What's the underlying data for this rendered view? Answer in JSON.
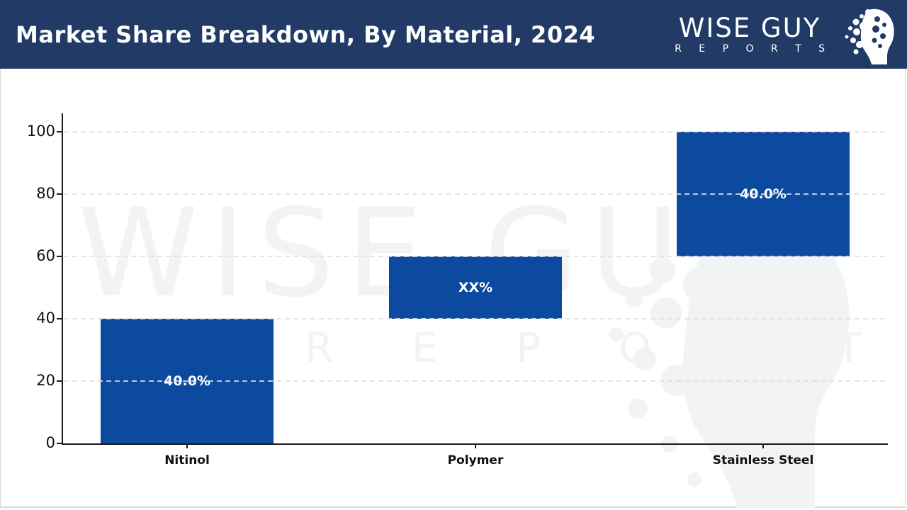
{
  "header": {
    "title": "Market Share Breakdown, By Material, 2024",
    "bg_color": "#213A66",
    "logo": {
      "line1": "WISE GUY",
      "line2": "REPORTS"
    }
  },
  "watermark": {
    "line1": "WISE GUY",
    "line2": "REPORTS"
  },
  "chart_data": {
    "type": "bar",
    "subtype": "waterfall",
    "title": "Market Share Breakdown, By Material, 2024",
    "categories": [
      "Nitinol",
      "Polymer",
      "Stainless Steel"
    ],
    "series": [
      {
        "name": "Market Share",
        "segments": [
          {
            "category": "Nitinol",
            "start": 0,
            "end": 40,
            "label": "40.0%"
          },
          {
            "category": "Polymer",
            "start": 40,
            "end": 60,
            "label": "XX%"
          },
          {
            "category": "Stainless Steel",
            "start": 60,
            "end": 100,
            "label": "40.0%"
          }
        ]
      }
    ],
    "xlabel": "",
    "ylabel": "",
    "ylim": [
      0,
      100
    ],
    "yticks": [
      0,
      20,
      40,
      60,
      80,
      100
    ],
    "grid": "horizontal-dashed",
    "legend": "none",
    "bar_color": "#0B4A9F",
    "bar_label_color": "#FFFFFF",
    "gridline_color": "#DEE0E4",
    "axis_color": "#1a1a1a"
  }
}
